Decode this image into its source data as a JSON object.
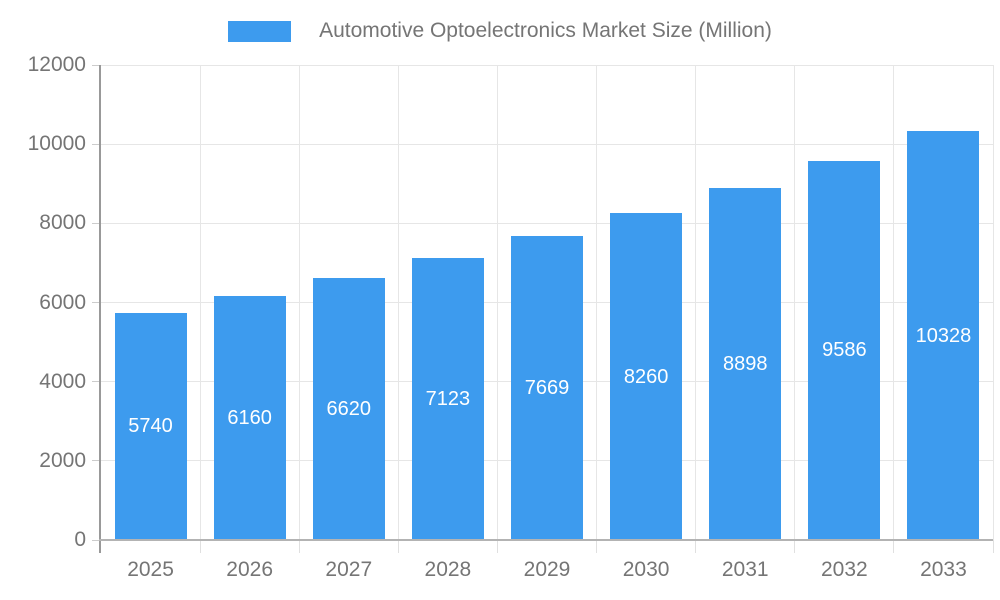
{
  "chart_data": {
    "type": "bar",
    "title": "",
    "legend": "Automotive Optoelectronics Market Size (Million)",
    "legend_position": "top-center",
    "categories": [
      "2025",
      "2026",
      "2027",
      "2028",
      "2029",
      "2030",
      "2031",
      "2032",
      "2033"
    ],
    "values": [
      5740,
      6160,
      6620,
      7123,
      7669,
      8260,
      8898,
      9586,
      10328
    ],
    "xlabel": "",
    "ylabel": "",
    "ylim": [
      0,
      12000
    ],
    "ytick_step": 2000,
    "yticks": [
      0,
      2000,
      4000,
      6000,
      8000,
      10000,
      12000
    ],
    "grid": true,
    "value_labels_inside_bars": true,
    "bar_color": "#3d9bee",
    "value_label_color": "#ffffff",
    "axis_text_color": "#757575"
  }
}
